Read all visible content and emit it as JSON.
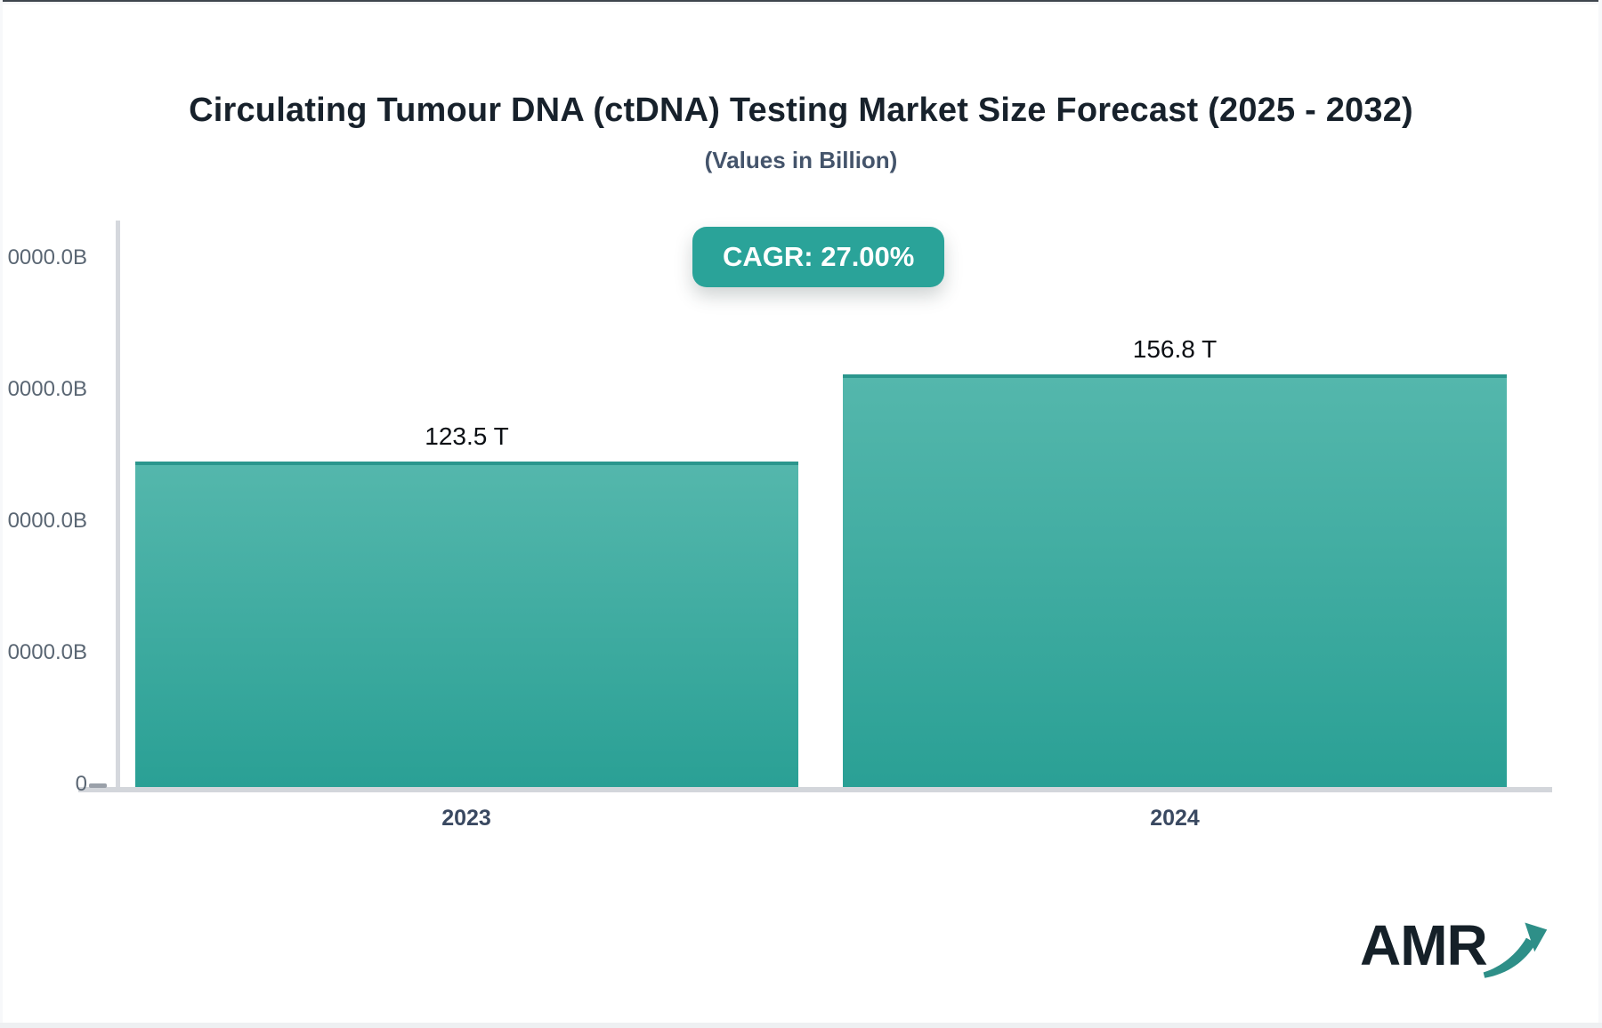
{
  "page": {
    "title": "Circulating Tumour DNA (ctDNA) Testing Market Size Forecast (2025 - 2032)",
    "subtitle": "(Values in Billion)",
    "cagr_label": "CAGR: 27.00%",
    "brand_text": "AMR"
  },
  "colors": {
    "accent_teal": "#2aa399",
    "bar_gradient_top": "#54b7ac",
    "bar_gradient_bottom": "#2aa095",
    "bar_top_edge": "#2b968d",
    "axis_gray": "#d5d8dd",
    "logo_dark": "#152028"
  },
  "chart_data": {
    "type": "bar",
    "title": "Circulating Tumour DNA (ctDNA) Testing Market Size Forecast (2025 - 2032)",
    "subtitle": "(Values in Billion)",
    "categories": [
      "2023",
      "2024"
    ],
    "values": [
      123500,
      156800
    ],
    "value_unit": "B",
    "value_labels": [
      "123.5 T",
      "156.8 T"
    ],
    "ylim": [
      0,
      200000
    ],
    "y_tick_step": 50000,
    "y_tick_labels_visible": [
      "0000.0B",
      "0000.0B",
      "0000.0B",
      "0000.0B",
      "0"
    ],
    "annotations": [
      "CAGR: 27.00%"
    ],
    "legend": "none",
    "grid": false
  }
}
